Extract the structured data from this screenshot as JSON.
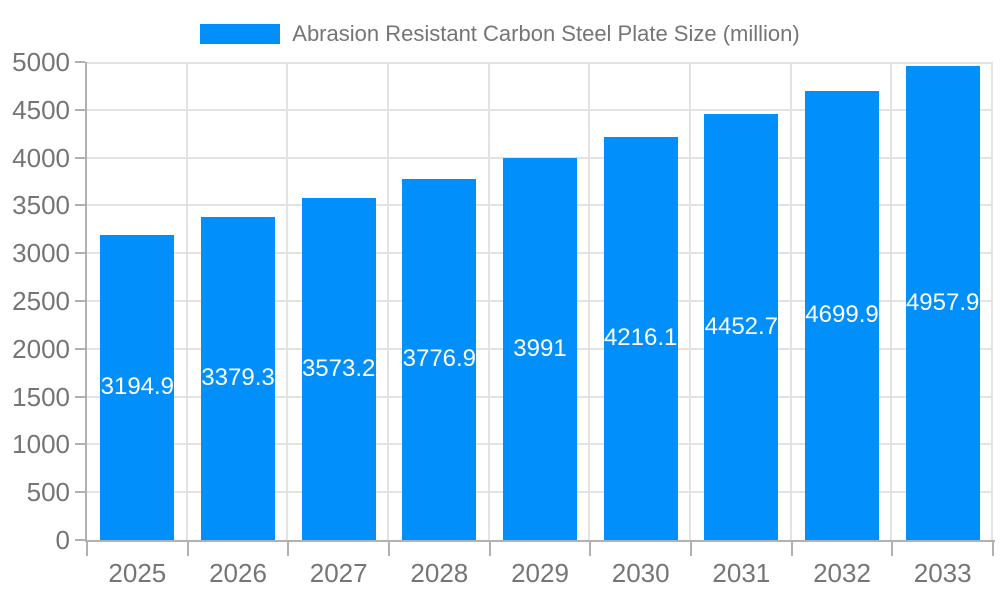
{
  "colors": {
    "bar": "#008FFB",
    "grid": "#e3e3e3",
    "axis": "#b1b1b1",
    "tick_label": "#757575",
    "legend_label": "#757575",
    "value_label": "#ffffff",
    "background": "#ffffff"
  },
  "chart_data": {
    "type": "bar",
    "title": "Abrasion Resistant Carbon Steel Plate Size (million)",
    "categories": [
      "2025",
      "2026",
      "2027",
      "2028",
      "2029",
      "2030",
      "2031",
      "2032",
      "2033"
    ],
    "values": [
      3194.9,
      3379.3,
      3573.2,
      3776.9,
      3991,
      4216.1,
      4452.7,
      4699.9,
      4957.9
    ],
    "value_labels": [
      "3194.9",
      "3379.3",
      "3573.2",
      "3776.9",
      "3991",
      "4216.1",
      "4452.7",
      "4699.9",
      "4957.9"
    ],
    "xlabel": "",
    "ylabel": "",
    "ylim": [
      0,
      5000
    ],
    "yticks": [
      "0",
      "500",
      "1000",
      "1500",
      "2000",
      "2500",
      "3000",
      "3500",
      "4000",
      "4500",
      "5000"
    ],
    "grid": true,
    "legend_position": "top"
  }
}
